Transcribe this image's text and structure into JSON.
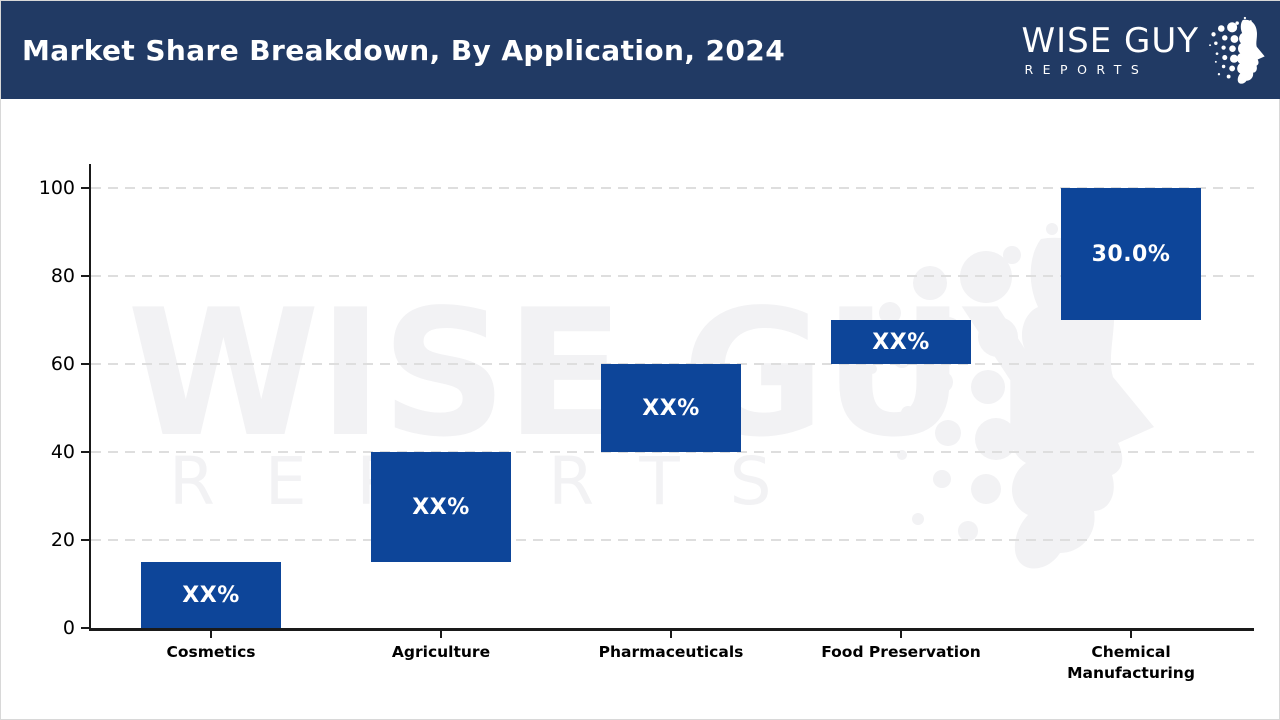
{
  "header": {
    "title": "Market Share Breakdown, By Application, 2024",
    "logo": {
      "wordmark": "WISE GUY",
      "subtext": "REPORTS"
    }
  },
  "watermark": {
    "wordmark": "WISE GUY",
    "subtext": "REPORTS"
  },
  "chart_data": {
    "type": "bar",
    "subtype": "floating-waterfall",
    "title": "Market Share Breakdown, By Application, 2024",
    "xlabel": "",
    "ylabel": "",
    "ylim": [
      0,
      100
    ],
    "yticks": [
      0,
      20,
      40,
      60,
      80,
      100
    ],
    "grid": "horizontal-dashed",
    "legend": "none",
    "categories": [
      "Cosmetics",
      "Agriculture",
      "Pharmaceuticals",
      "Food Preservation",
      "Chemical Manufacturing"
    ],
    "segments": [
      {
        "category": "Cosmetics",
        "start": 0,
        "end": 15,
        "label": "XX%"
      },
      {
        "category": "Agriculture",
        "start": 15,
        "end": 40,
        "label": "XX%"
      },
      {
        "category": "Pharmaceuticals",
        "start": 40,
        "end": 60,
        "label": "XX%"
      },
      {
        "category": "Food Preservation",
        "start": 60,
        "end": 70,
        "label": "XX%"
      },
      {
        "category": "Chemical Manufacturing",
        "start": 70,
        "end": 100,
        "label": "30.0%"
      }
    ],
    "colors": {
      "bar": "#0d4599",
      "bar_label": "#ffffff",
      "axis": "#1a1a1a",
      "gridline": "#dedede",
      "header_bg": "#213a64",
      "watermark": "#f2f2f4"
    }
  }
}
